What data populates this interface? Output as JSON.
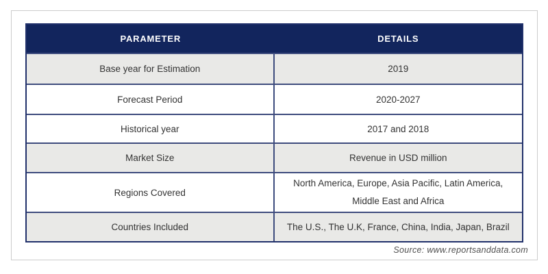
{
  "chart_data": {
    "type": "table",
    "columns": [
      "PARAMETER",
      "DETAILS"
    ],
    "rows": [
      [
        "Base year for Estimation",
        "2019"
      ],
      [
        "Forecast Period",
        "2020-2027"
      ],
      [
        "Historical year",
        "2017 and 2018"
      ],
      [
        "Market Size",
        "Revenue in USD million"
      ],
      [
        "Regions Covered",
        "North America, Europe, Asia Pacific, Latin America, Middle East and Africa"
      ],
      [
        "Countries Included",
        "The U.S., The U.K, France, China, India, Japan, Brazil"
      ]
    ],
    "source": "Source: www.reportsanddata.com",
    "layout_hints": {
      "column_split": "50/50",
      "cell_alignment": "center",
      "shaded_row_indexes": [
        0,
        3,
        5
      ]
    }
  },
  "colors": {
    "header_bg": "#12255d",
    "header_text": "#ffffff",
    "shaded_row": "#e9e9e7",
    "plain_row": "#ffffff",
    "row_border": "#3d4b7d",
    "outer_border": "#20306a",
    "cell_text": "#333333",
    "source_text": "#4f4f4f",
    "card_border": "#cccccc"
  }
}
